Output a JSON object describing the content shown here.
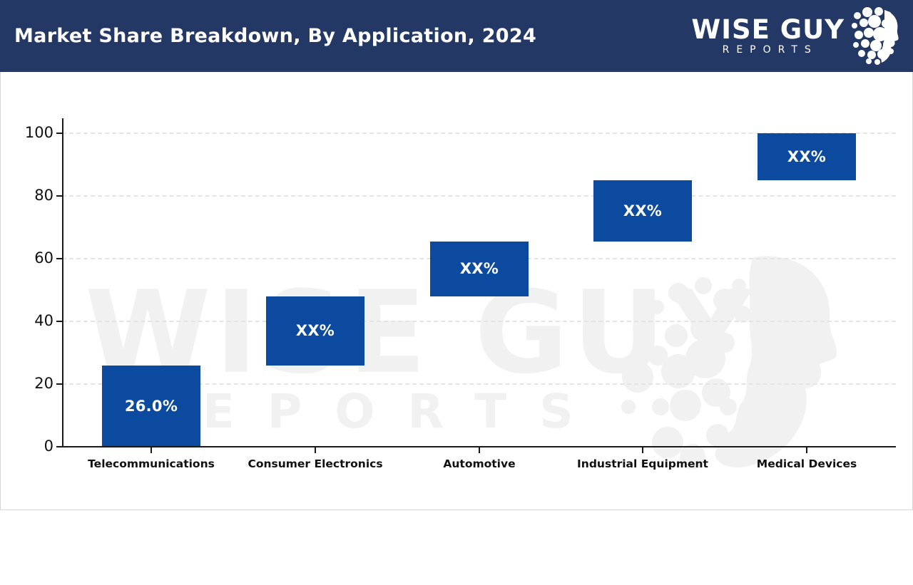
{
  "header": {
    "title": "Market Share Breakdown, By Application, 2024",
    "logo": {
      "line1": "WISE GUY",
      "line2": "REPORTS"
    }
  },
  "watermark": {
    "line1": "WISE GUY",
    "line2": "REPORTS"
  },
  "colors": {
    "header_bg": "#233864",
    "bar": "#0c4aa0",
    "bar_label": "#ffffff",
    "grid": "#e4e4e4",
    "axis": "#1a1a1a",
    "watermark": "#f1f1f1",
    "panel_border": "#d6d6d6"
  },
  "chart_data": {
    "type": "bar",
    "subtype": "waterfall",
    "title": "Market Share Breakdown, By Application, 2024",
    "categories": [
      "Telecommunications",
      "Consumer Electronics",
      "Automotive",
      "Industrial Equipment",
      "Medical Devices"
    ],
    "series": [
      {
        "name": "Market Share",
        "segments": [
          {
            "category": "Telecommunications",
            "start": 0,
            "end": 26,
            "label": "26.0%"
          },
          {
            "category": "Consumer Electronics",
            "start": 26,
            "end": 48,
            "label": "XX%"
          },
          {
            "category": "Automotive",
            "start": 48,
            "end": 65.5,
            "label": "XX%"
          },
          {
            "category": "Industrial Equipment",
            "start": 65.5,
            "end": 85,
            "label": "XX%"
          },
          {
            "category": "Medical Devices",
            "start": 85,
            "end": 100,
            "label": "XX%"
          }
        ]
      }
    ],
    "xlabel": "",
    "ylabel": "",
    "ylim": [
      0,
      100
    ],
    "yticks": [
      0,
      20,
      40,
      60,
      80,
      100
    ],
    "grid": "horizontal-dashed",
    "legend": "none"
  }
}
